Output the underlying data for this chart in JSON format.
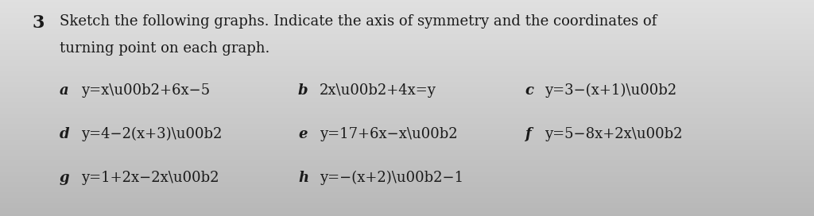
{
  "background_color": "#c8c8c8",
  "question_number": "3",
  "instruction_line1": "Sketch the following graphs. Indicate the axis of symmetry and the coordinates of",
  "instruction_line2": "turning point on each graph.",
  "items": [
    {
      "label": "a",
      "equation": "y=x\\u00b2+6x−5"
    },
    {
      "label": "b",
      "equation": "2x\\u00b2+4x=y"
    },
    {
      "label": "c",
      "equation": "y=3−(x+1)\\u00b2"
    },
    {
      "label": "d",
      "equation": "y=4−2(x+3)\\u00b2"
    },
    {
      "label": "e",
      "equation": "y=17+6x−x\\u00b2"
    },
    {
      "label": "f",
      "equation": "y=5−8x+2x\\u00b2"
    },
    {
      "label": "g",
      "equation": "y=1+2x−2x\\u00b2"
    },
    {
      "label": "h",
      "equation": "y=−(x+2)\\u00b2−1"
    }
  ],
  "text_color": "#1a1a1a",
  "fontsize_number": 16,
  "fontsize_instruction": 13,
  "fontsize_label": 13,
  "fontsize_equation": 13
}
